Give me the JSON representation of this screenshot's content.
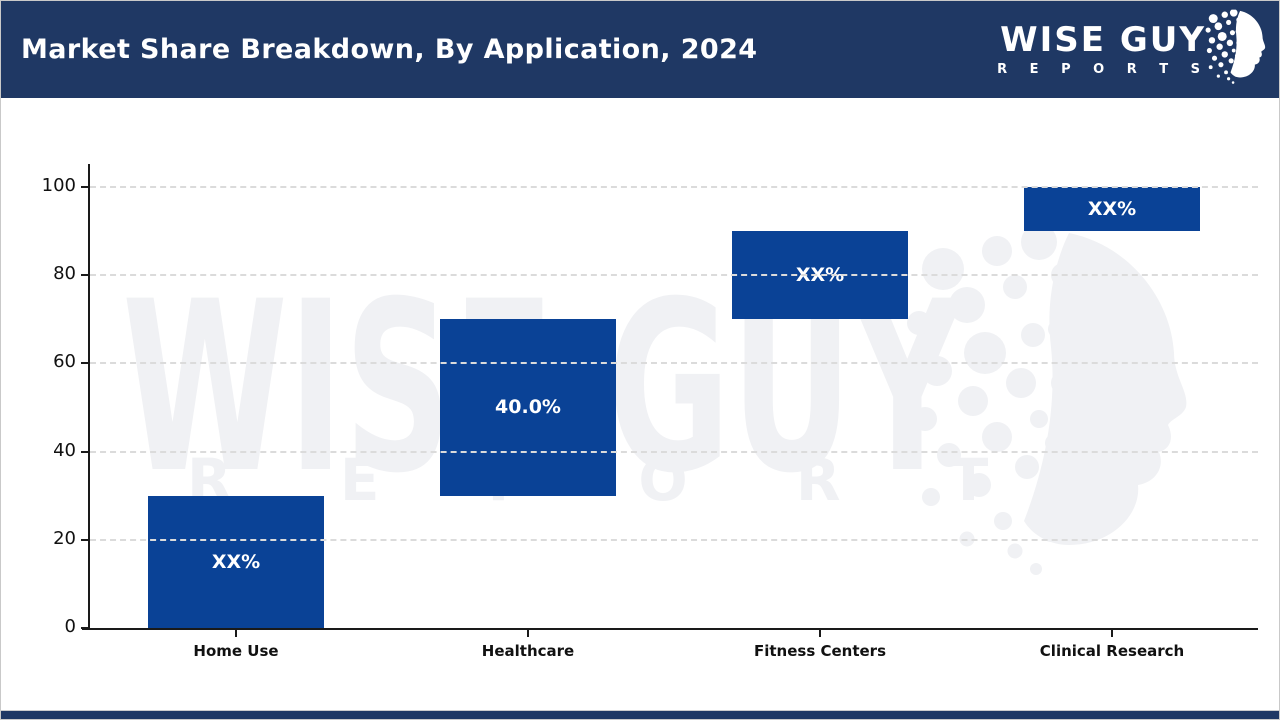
{
  "header": {
    "title": "Market Share Breakdown, By Application, 2024",
    "logo": {
      "line1": "WISE GUY",
      "line2": "R E P O R T S"
    }
  },
  "watermark": {
    "line1": "WISE GUY",
    "line2": "R E P O R T S"
  },
  "colors": {
    "header_bg": "#1f3864",
    "footer_bg": "#1f3864",
    "bar": "#0a4296",
    "bar_label_text": "#ffffff",
    "grid": "#dbdbdb",
    "axis": "#1a1a1a",
    "watermark": "#f0f1f4"
  },
  "chart_data": {
    "type": "bar",
    "subtype": "floating-waterfall",
    "title": "Market Share Breakdown, By Application, 2024",
    "categories": [
      "Home Use",
      "Healthcare",
      "Fitness Centers",
      "Clinical Research"
    ],
    "series": [
      {
        "name": "Market Share",
        "segments": [
          [
            0,
            30
          ],
          [
            30,
            70
          ],
          [
            70,
            90
          ],
          [
            90,
            100
          ]
        ],
        "values": [
          30,
          40,
          20,
          10
        ]
      }
    ],
    "bar_labels": [
      "XX%",
      "40.0%",
      "XX%",
      "XX%"
    ],
    "xlabel": "",
    "ylabel": "",
    "ylim": [
      0,
      100
    ],
    "yticks": [
      0,
      20,
      40,
      60,
      80,
      100
    ],
    "grid": "dashed-horizontal",
    "legend": "none"
  }
}
